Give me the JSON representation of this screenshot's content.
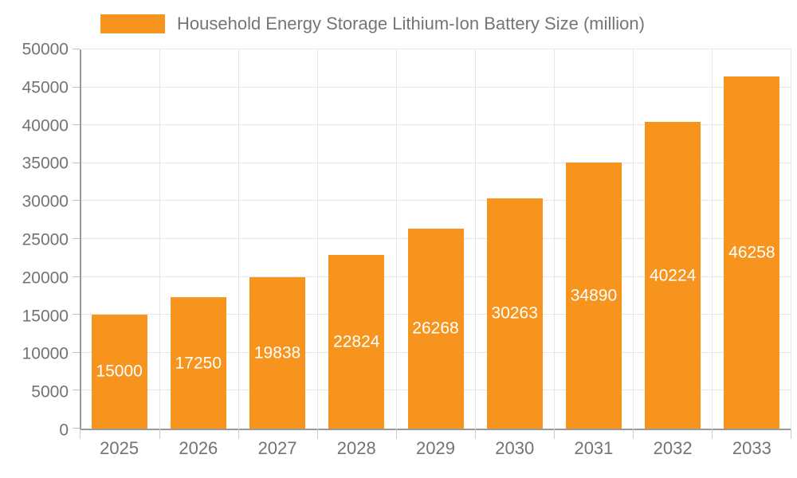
{
  "legend": {
    "position": "top"
  },
  "chart_data": {
    "type": "bar",
    "title": "Household Energy Storage Lithium-Ion Battery Size (million)",
    "categories": [
      "2025",
      "2026",
      "2027",
      "2028",
      "2029",
      "2030",
      "2031",
      "2032",
      "2033"
    ],
    "values": [
      15000,
      17250,
      19838,
      22824,
      26268,
      30263,
      34890,
      40224,
      46258
    ],
    "value_labels": [
      "15000",
      "17250",
      "19838",
      "22824",
      "26268",
      "30263",
      "34890",
      "40224",
      "46258"
    ],
    "xlabel": "",
    "ylabel": "",
    "ylim": [
      0,
      50000
    ],
    "y_tick_step": 5000,
    "y_tick_labels": [
      "0",
      "5000",
      "10000",
      "15000",
      "20000",
      "25000",
      "30000",
      "35000",
      "40000",
      "45000",
      "50000"
    ],
    "grid": true,
    "legend_position": "top",
    "bar_color": "#F7941E",
    "value_label_color": "#FFFFFF",
    "axis_text_color": "#737373",
    "grid_color": "#E6E6E6",
    "axis_line_color": "#9A9A9A"
  }
}
